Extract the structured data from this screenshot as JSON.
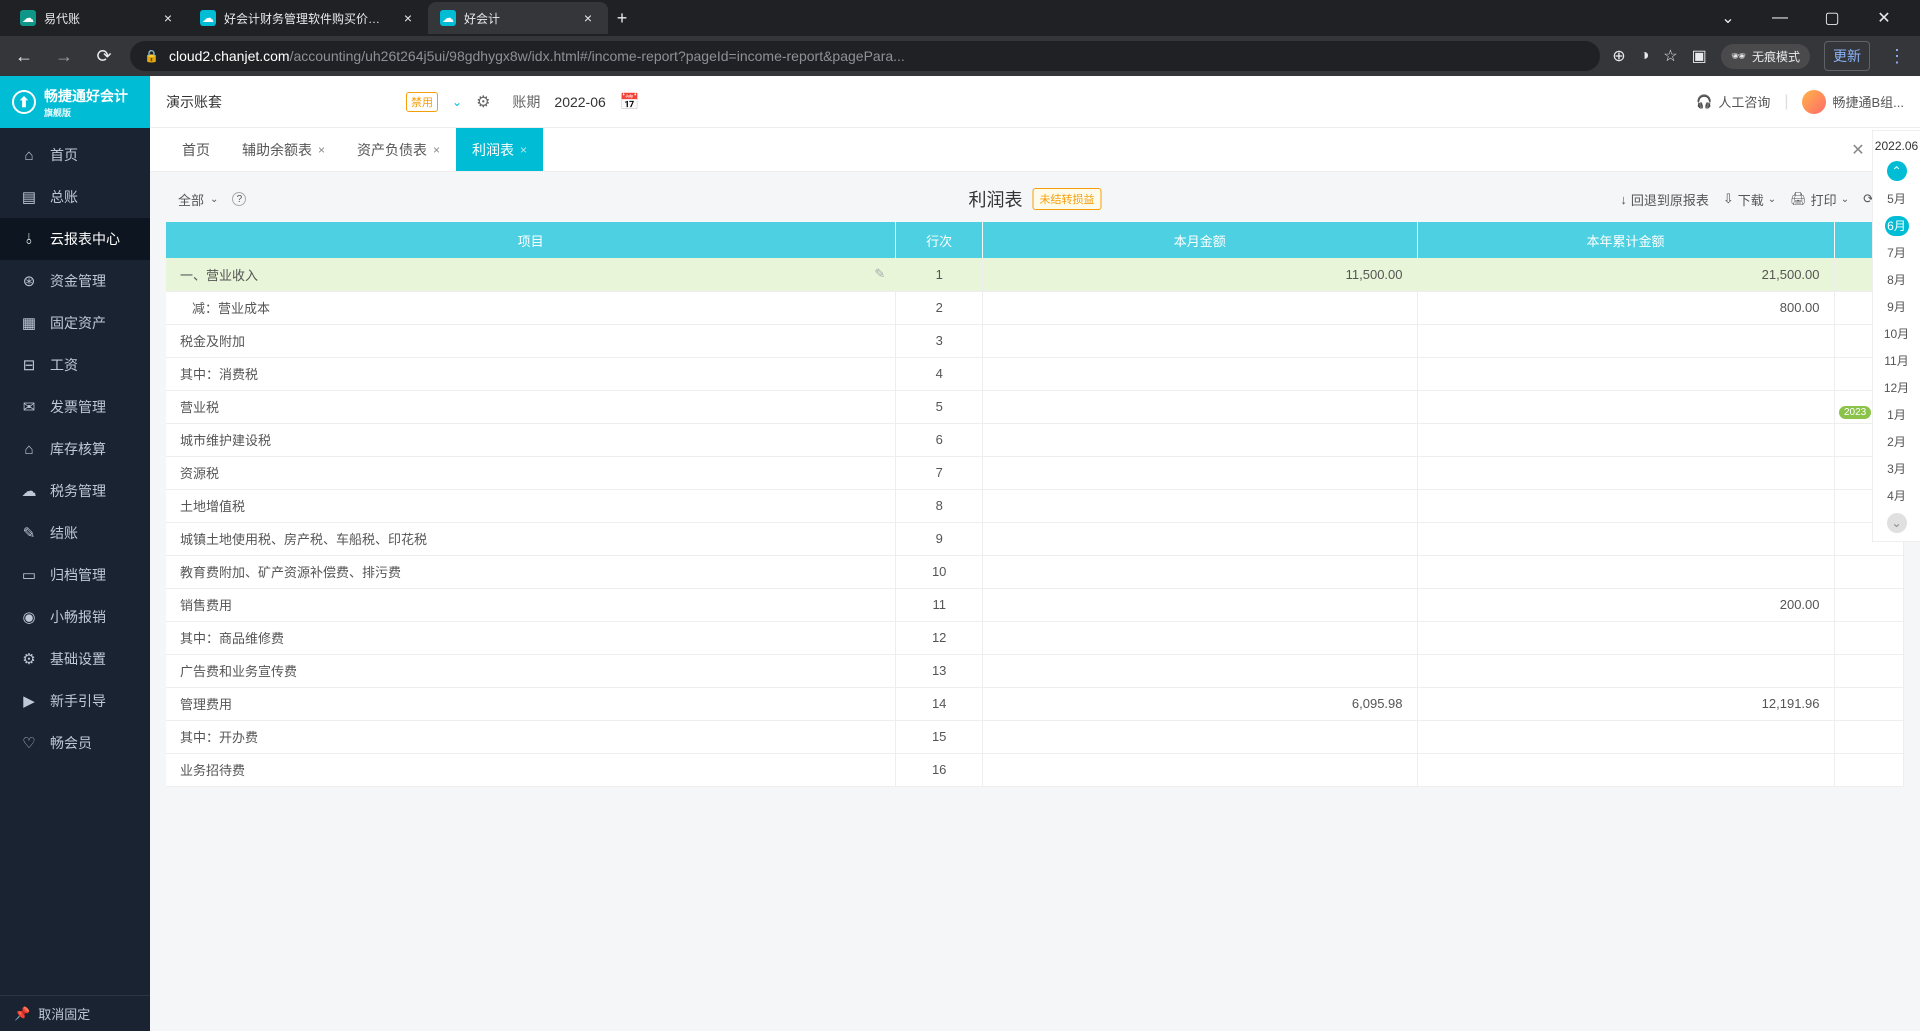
{
  "browser": {
    "tabs": [
      {
        "title": "易代账",
        "favicon_bg": "#0e9688"
      },
      {
        "title": "好会计财务管理软件购买价格及…",
        "favicon_bg": "#00bcd4"
      },
      {
        "title": "好会计",
        "favicon_bg": "#00bcd4",
        "active": true
      }
    ],
    "url_host": "cloud2.chanjet.com",
    "url_path": "/accounting/uh26t264j5ui/98gdhygx8w/idx.html#/income-report?pageId=income-report&pagePara...",
    "incognito_label": "无痕模式",
    "update_label": "更新"
  },
  "sidebar": {
    "logo_text": "畅捷通好会计",
    "logo_sub": "旗舰版",
    "items": [
      {
        "icon": "⌂",
        "label": "首页"
      },
      {
        "icon": "▤",
        "label": "总账"
      },
      {
        "icon": "⫰",
        "label": "云报表中心",
        "active": true
      },
      {
        "icon": "⊛",
        "label": "资金管理"
      },
      {
        "icon": "▦",
        "label": "固定资产"
      },
      {
        "icon": "⊟",
        "label": "工资"
      },
      {
        "icon": "✉",
        "label": "发票管理"
      },
      {
        "icon": "⌂",
        "label": "库存核算"
      },
      {
        "icon": "☁",
        "label": "税务管理"
      },
      {
        "icon": "✎",
        "label": "结账"
      },
      {
        "icon": "▭",
        "label": "归档管理"
      },
      {
        "icon": "◉",
        "label": "小畅报销"
      },
      {
        "icon": "⚙",
        "label": "基础设置"
      },
      {
        "icon": "▶",
        "label": "新手引导"
      },
      {
        "icon": "♡",
        "label": "畅会员"
      }
    ],
    "footer_label": "取消固定"
  },
  "header": {
    "account_name": "演示账套",
    "prohibit_badge": "禁用",
    "period_label": "账期",
    "period_value": "2022-06",
    "consult_label": "人工咨询",
    "user_label": "畅捷通B组..."
  },
  "tabs": [
    {
      "label": "首页",
      "closable": false
    },
    {
      "label": "辅助余额表",
      "closable": true
    },
    {
      "label": "资产负债表",
      "closable": true
    },
    {
      "label": "利润表",
      "closable": true,
      "active": true
    }
  ],
  "toolbar": {
    "filter_label": "全部",
    "title": "利润表",
    "badge": "未结转损益",
    "revert_label": "回退到原报表",
    "download_label": "下载",
    "print_label": "打印",
    "refresh_label": "刷新"
  },
  "table": {
    "columns": {
      "item": "项目",
      "row": "行次",
      "month": "本月金额",
      "year": "本年累计金额"
    },
    "col_widths": {
      "item": "42%",
      "row": "5%",
      "month": "25%",
      "year": "24%"
    },
    "rows": [
      {
        "item": "一、营业收入",
        "row": "1",
        "month": "11,500.00",
        "year": "21,500.00",
        "highlight": true,
        "editable": true,
        "indent": 0
      },
      {
        "item": "减：营业成本",
        "row": "2",
        "month": "",
        "year": "800.00",
        "indent": 1
      },
      {
        "item": "税金及附加",
        "row": "3",
        "month": "",
        "year": "",
        "indent": 0
      },
      {
        "item": "其中：消费税",
        "row": "4",
        "month": "",
        "year": "",
        "indent": 0
      },
      {
        "item": "营业税",
        "row": "5",
        "month": "",
        "year": "",
        "indent": 0
      },
      {
        "item": "城市维护建设税",
        "row": "6",
        "month": "",
        "year": "",
        "indent": 0
      },
      {
        "item": "资源税",
        "row": "7",
        "month": "",
        "year": "",
        "indent": 0
      },
      {
        "item": "土地增值税",
        "row": "8",
        "month": "",
        "year": "",
        "indent": 0
      },
      {
        "item": "城镇土地使用税、房产税、车船税、印花税",
        "row": "9",
        "month": "",
        "year": "",
        "indent": 0
      },
      {
        "item": "教育费附加、矿产资源补偿费、排污费",
        "row": "10",
        "month": "",
        "year": "",
        "indent": 0
      },
      {
        "item": "销售费用",
        "row": "11",
        "month": "",
        "year": "200.00",
        "indent": 0
      },
      {
        "item": "其中：商品维修费",
        "row": "12",
        "month": "",
        "year": "",
        "indent": 0
      },
      {
        "item": "广告费和业务宣传费",
        "row": "13",
        "month": "",
        "year": "",
        "indent": 0
      },
      {
        "item": "管理费用",
        "row": "14",
        "month": "6,095.98",
        "year": "12,191.96",
        "indent": 0
      },
      {
        "item": "其中：开办费",
        "row": "15",
        "month": "",
        "year": "",
        "indent": 0
      },
      {
        "item": "业务招待费",
        "row": "16",
        "month": "",
        "year": "",
        "indent": 0
      }
    ]
  },
  "rail": {
    "year": "2022.06",
    "months": [
      "5月",
      "6月",
      "7月",
      "8月",
      "9月",
      "10月",
      "11月",
      "12月",
      "1月",
      "2月",
      "3月",
      "4月"
    ],
    "active_index": 1,
    "next_year_tag": "2023",
    "next_year_index": 8
  },
  "colors": {
    "teal": "#00bcd4",
    "teal_light": "#4dd0e1",
    "sidebar_bg": "#1a2332",
    "highlight_row": "#e8f5d8",
    "orange": "#f59e0b"
  }
}
